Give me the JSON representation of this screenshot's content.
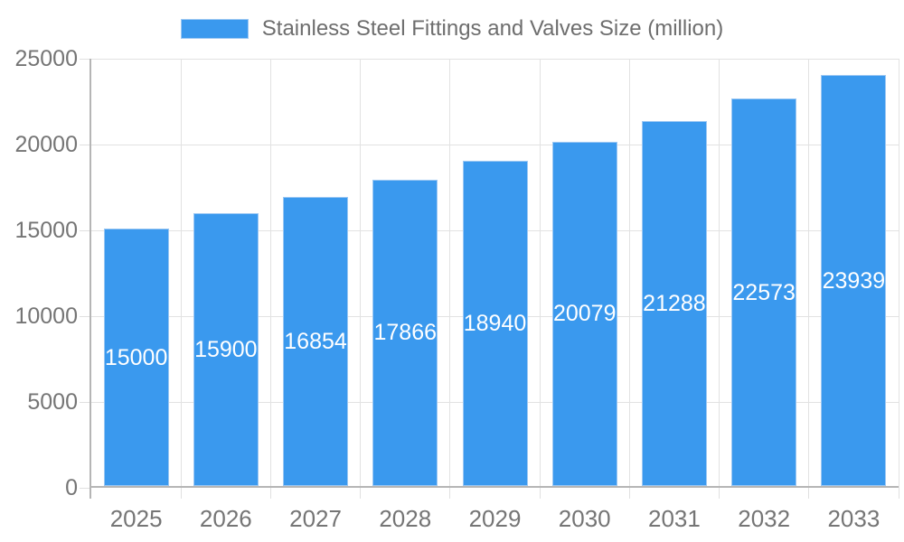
{
  "chart_data": {
    "type": "bar",
    "title": "Stainless Steel Fittings and Valves Size (million)",
    "categories": [
      "2025",
      "2026",
      "2027",
      "2028",
      "2029",
      "2030",
      "2031",
      "2032",
      "2033"
    ],
    "series": [
      {
        "name": "Stainless Steel Fittings and Valves Size (million)",
        "values": [
          15000,
          15900,
          16854,
          17866,
          18940,
          20079,
          21288,
          22573,
          23939
        ]
      }
    ],
    "bar_value_labels": [
      "15000",
      "15900",
      "16854",
      "17866",
      "18940",
      "20079",
      "21288",
      "22573",
      "23939"
    ],
    "xlabel": "",
    "ylabel": "",
    "ylim": [
      0,
      25000
    ],
    "ytick_interval": 5000,
    "yticks": [
      "0",
      "5000",
      "10000",
      "15000",
      "20000",
      "25000"
    ],
    "grid": true,
    "legend_position": "top",
    "colors": {
      "bar_fill": "#3A99EE",
      "bar_border": "#9DC8F3",
      "bar_label_text": "#FFFFFF",
      "gridline": "#E2E2E2",
      "tick_mark": "#E0E0E0",
      "axis_line": "#B5B5B5",
      "axis_text": "#757575",
      "legend_text": "#6E6E6E"
    }
  }
}
